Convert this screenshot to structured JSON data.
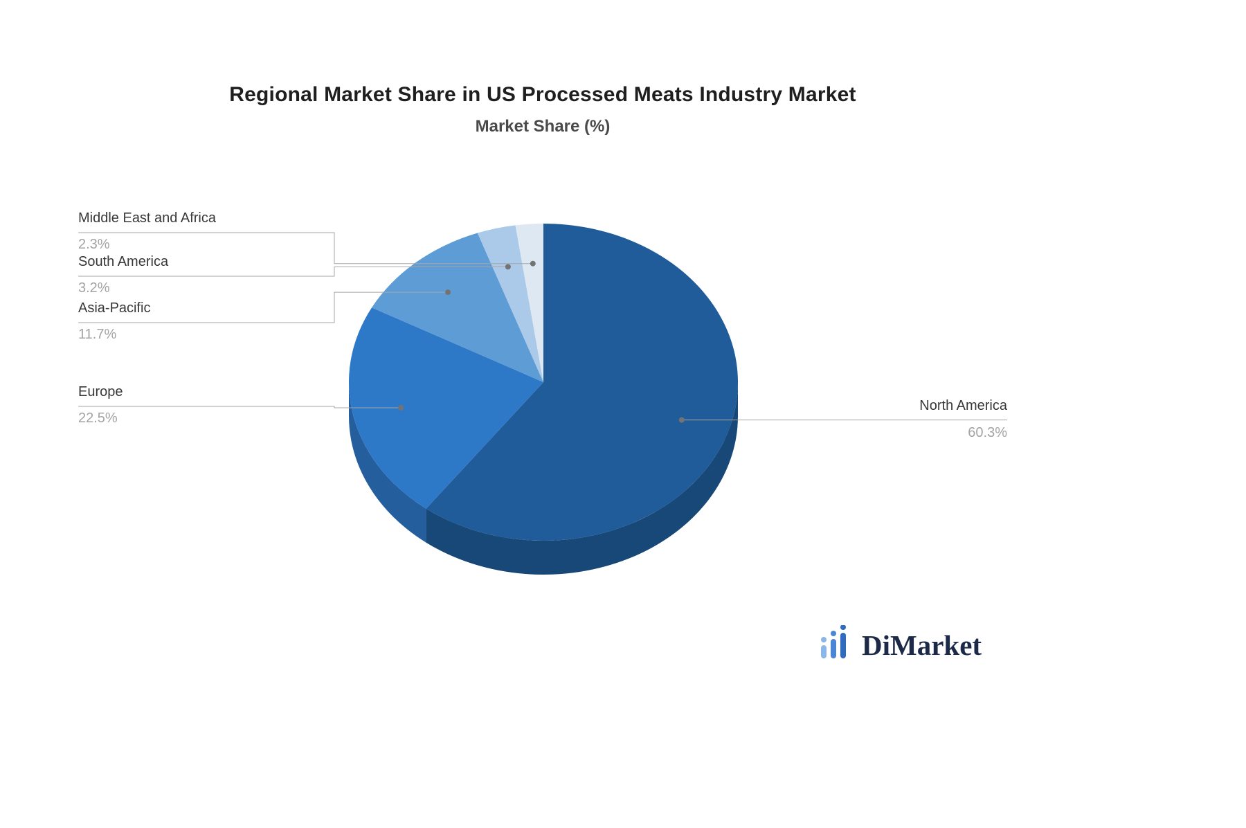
{
  "chart_data": {
    "type": "pie",
    "style": "3d",
    "title": "Regional Market Share in US Processed Meats Industry Market",
    "subtitle": "Market Share (%)",
    "series_name": "Market Share",
    "unit": "%",
    "start_angle": "top",
    "direction": "clockwise",
    "labels": [
      "North America",
      "Europe",
      "Asia-Pacific",
      "South America",
      "Middle East and Africa"
    ],
    "values": [
      60.3,
      22.5,
      11.7,
      3.2,
      2.3
    ],
    "display_values": [
      "60.3%",
      "22.5%",
      "11.7%",
      "3.2%",
      "2.3%"
    ],
    "colors": [
      "#1f5c99",
      "#2e78c8",
      "#5e9cd6",
      "#abc9e8",
      "#dde8f3"
    ],
    "label_color": "#383838",
    "value_color": "#a3a3a3",
    "leader_line_color": "#a6a6a6",
    "leader_dot_color": "#737373",
    "legend_position": "callout-labels"
  },
  "branding": {
    "logo_text": "DiMarket",
    "logo_bar_colors": [
      "#8ab6e8",
      "#4a86d4",
      "#2f6cc0"
    ]
  }
}
